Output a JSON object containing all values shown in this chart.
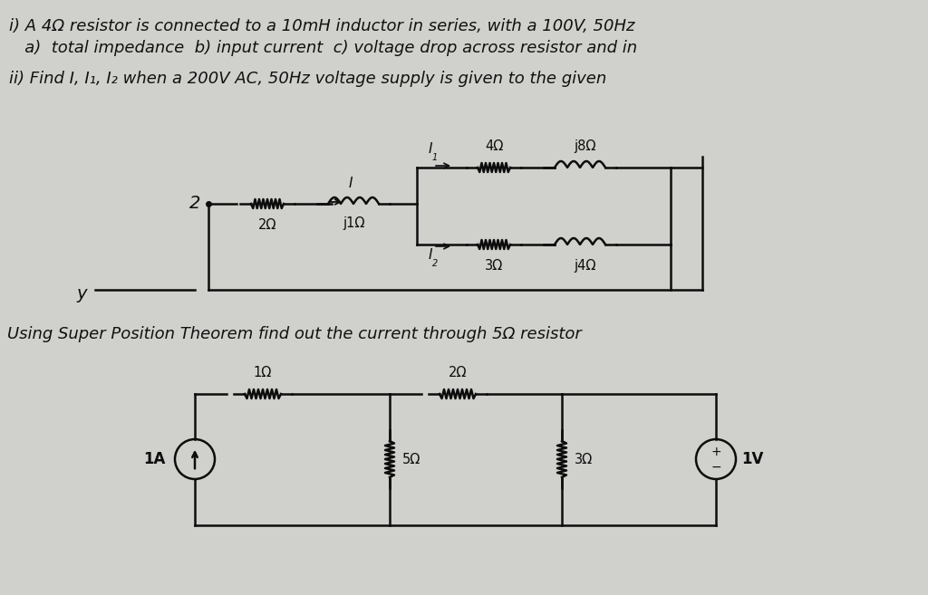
{
  "background_color": "#d0d0cc",
  "text_color": "#111111",
  "line1": "i) A 4Ω resistor is connected to a 10mH inductor in series, with a 100V, 50Hz",
  "line2": "   a)  total impedance  b) input current  c) voltage drop across resistor and in",
  "line3": "ii) Find I, I₁, I₂ when a 200V AC, 50Hz voltage supply is given to the given",
  "superposition_text": "Using Super Position Theorem find out the current through 5Ω resistor",
  "font_size_main": 13,
  "font_size_label": 10.5,
  "lw": 1.8
}
